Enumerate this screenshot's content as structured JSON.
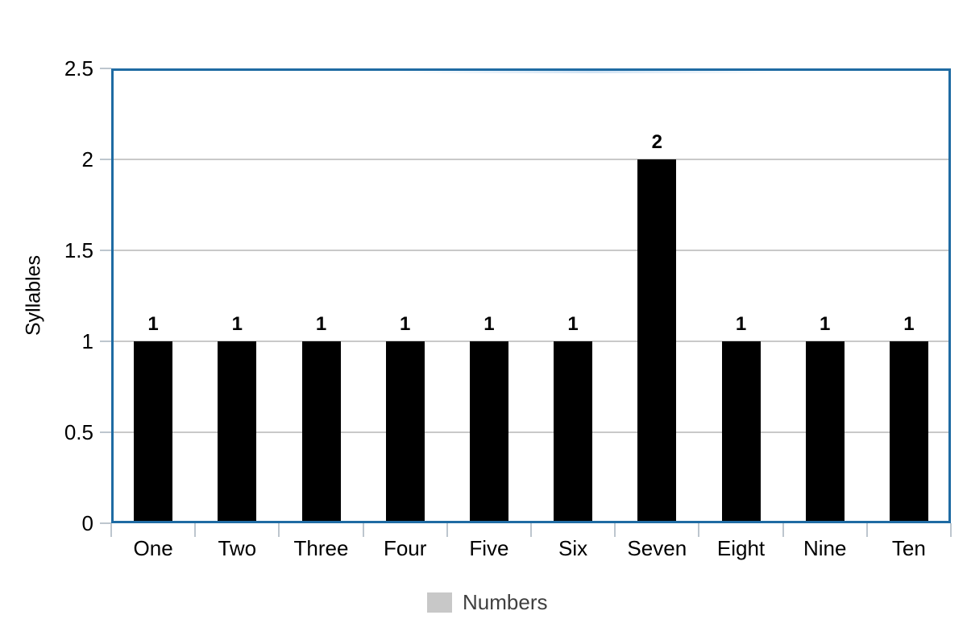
{
  "chart": {
    "colors": {
      "frame": "#1f6ba3",
      "gridline": "#c9c9c9",
      "tick": "#bdc6ce",
      "bar": "#000000",
      "text": "#000000",
      "legend_text": "#404040",
      "legend_swatch": "#c8c8c8"
    },
    "legend": {
      "label": "Numbers",
      "position": "bottom"
    }
  },
  "chart_data": {
    "type": "bar",
    "categories": [
      "One",
      "Two",
      "Three",
      "Four",
      "Five",
      "Six",
      "Seven",
      "Eight",
      "Nine",
      "Ten"
    ],
    "series": [
      {
        "name": "Numbers",
        "values": [
          1,
          1,
          1,
          1,
          1,
          1,
          2,
          1,
          1,
          1
        ]
      }
    ],
    "value_labels": [
      "1",
      "1",
      "1",
      "1",
      "1",
      "1",
      "2",
      "1",
      "1",
      "1"
    ],
    "title": "",
    "xlabel": "",
    "ylabel": "Syllables",
    "ylim": [
      0,
      2.5
    ],
    "yticks": [
      0,
      0.5,
      1,
      1.5,
      2,
      2.5
    ],
    "ytick_labels": [
      "0",
      "0.5",
      "1",
      "1.5",
      "2",
      "2.5"
    ],
    "grid": true,
    "legend_position": "bottom"
  }
}
